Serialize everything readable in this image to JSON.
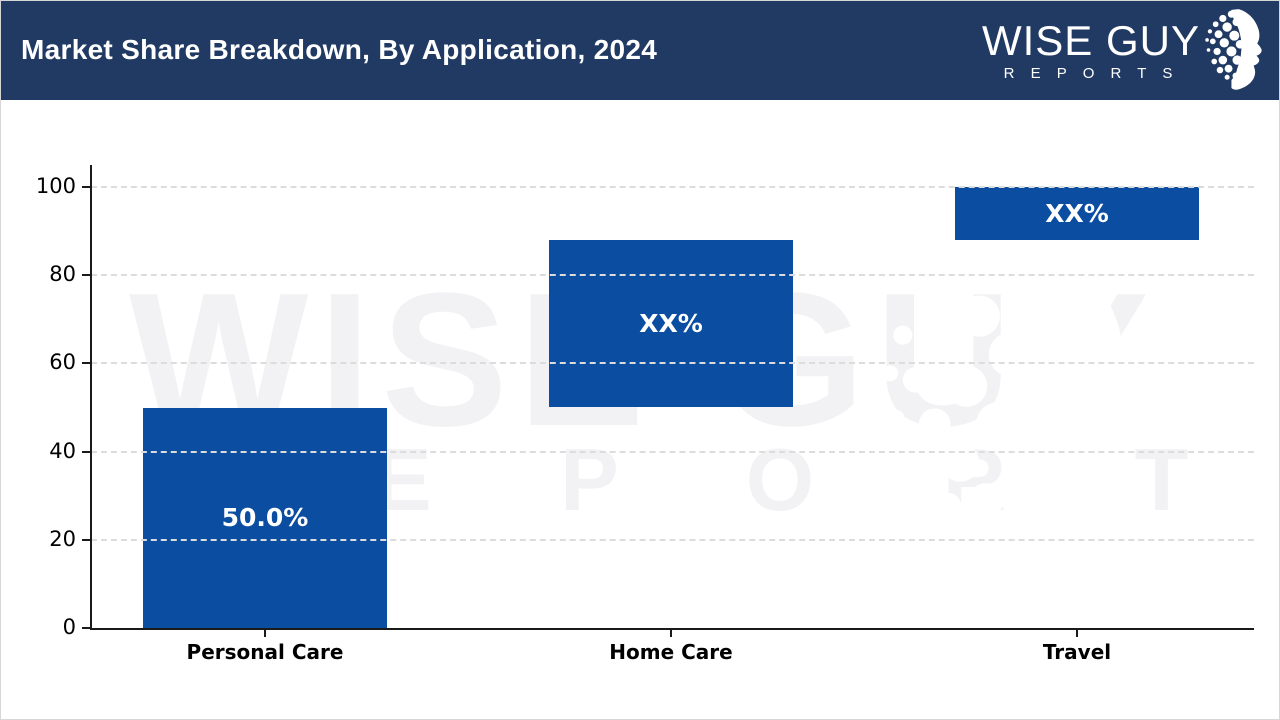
{
  "header": {
    "title": "Market Share Breakdown, By Application, 2024",
    "background_color": "#213a63",
    "logo": {
      "wordmark": "WISE GUY",
      "subtext": "R E P O R T S"
    }
  },
  "watermark": {
    "line1": "WISE GUY",
    "line2": "R E P O R T S"
  },
  "chart_data": {
    "type": "bar",
    "subtype": "floating-segment-bar (stacked breakdown)",
    "title": "Market Share Breakdown, By Application, 2024",
    "categories": [
      "Personal Care",
      "Home Care",
      "Travel"
    ],
    "series": [
      {
        "name": "Market share (%)",
        "segments": [
          {
            "category": "Personal Care",
            "start": 0,
            "end": 50,
            "value": 50,
            "label": "50.0%"
          },
          {
            "category": "Home Care",
            "start": 50,
            "end": 88,
            "value": 38,
            "label": "XX%"
          },
          {
            "category": "Travel",
            "start": 88,
            "end": 100,
            "value": 12,
            "label": "XX%"
          }
        ]
      }
    ],
    "xlabel": "",
    "ylabel": "",
    "ylim": [
      0,
      105
    ],
    "yticks": [
      0,
      20,
      40,
      60,
      80,
      100
    ],
    "grid": "horizontal-dashed",
    "legend": "none",
    "bar_color": "#0b4da1",
    "bar_label_color": "#ffffff",
    "axis_color": "#1a1a1a",
    "grid_color": "#dcdcdc"
  }
}
